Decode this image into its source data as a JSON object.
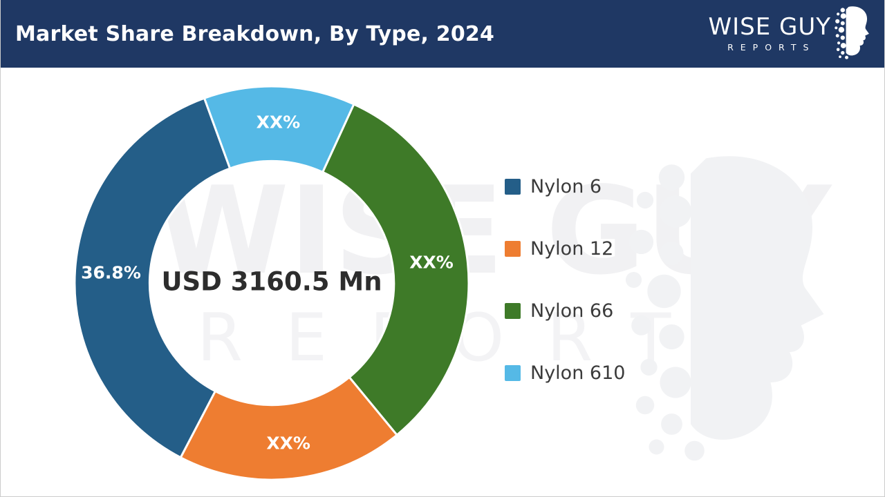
{
  "header": {
    "title": "Market Share Breakdown, By Type, 2024",
    "logo": {
      "line1": "WISE GUY",
      "line2": "REPORTS"
    }
  },
  "watermark": {
    "line1": "WISE GUY",
    "line2": "REPORTS"
  },
  "colors": {
    "header_bg": "#1F3864",
    "title_text": "#FFFFFF",
    "body_bg": "#FFFFFF",
    "center_text": "#2D2D2D",
    "legend_text": "#3B3B3B",
    "watermark": "#F1F1F3",
    "border": "#CCCCCC"
  },
  "chart_data": {
    "type": "donut",
    "title": "Market Share Breakdown, By Type, 2024",
    "center_label": "USD 3160.5 Mn",
    "start_angle": 110,
    "direction": "counterclockwise",
    "legend_position": "right",
    "inner_radius_ratio": 0.62,
    "categories": [
      "Nylon 6",
      "Nylon 12",
      "Nylon 66",
      "Nylon 610"
    ],
    "values": [
      36.8,
      18.6,
      32.2,
      12.4
    ],
    "segments": [
      {
        "label": "Nylon 6",
        "value": 36.8,
        "display": "36.8%",
        "color": "#245E88"
      },
      {
        "label": "Nylon 12",
        "value": 18.6,
        "display": "XX%",
        "color": "#EE7D31"
      },
      {
        "label": "Nylon 66",
        "value": 32.2,
        "display": "XX%",
        "color": "#3E7A28"
      },
      {
        "label": "Nylon 610",
        "value": 12.4,
        "display": "XX%",
        "color": "#55B9E6"
      }
    ]
  }
}
